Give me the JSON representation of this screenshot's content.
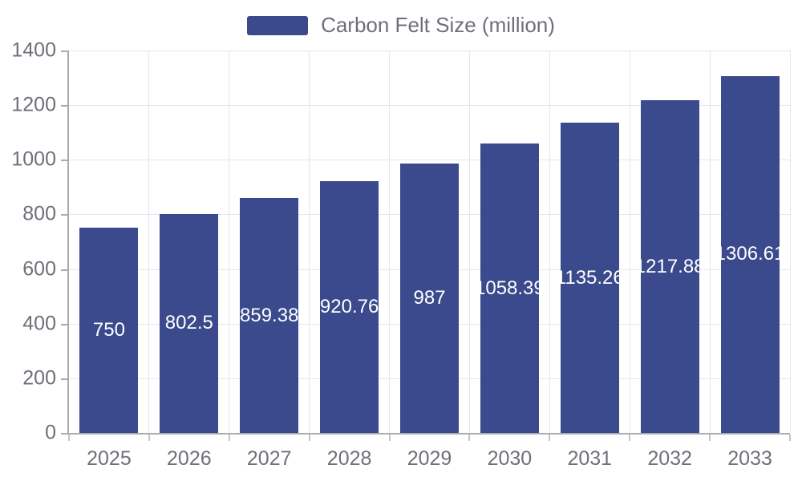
{
  "chart_data": {
    "type": "bar",
    "title": "Carbon Felt Size (million)",
    "legend": [
      "Carbon Felt Size (million)"
    ],
    "legend_position": "top",
    "categories": [
      "2025",
      "2026",
      "2027",
      "2028",
      "2029",
      "2030",
      "2031",
      "2032",
      "2033"
    ],
    "series": [
      {
        "name": "Carbon Felt Size (million)",
        "values": [
          750,
          802.5,
          859.38,
          920.76,
          987,
          1058.39,
          1135.26,
          1217.88,
          1306.61
        ]
      }
    ],
    "value_labels": [
      "750",
      "802.5",
      "859.38",
      "920.76",
      "987",
      "1058.39",
      "1135.26",
      "1217.88",
      "1306.61"
    ],
    "xlabel": "",
    "ylabel": "",
    "ylim": [
      0,
      1400
    ],
    "yticks": [
      0,
      200,
      400,
      600,
      800,
      1000,
      1200,
      1400
    ],
    "grid": true,
    "colors": {
      "bar": "#3A4A8C",
      "value_label": "#FFFFFF",
      "axis_label": "#6E7079",
      "legend_text": "#6E7079",
      "grid_line": "#E3E6EC",
      "axis_line": "#A8ABB2",
      "tick": "#C2C6CC",
      "background": "#FFFFFF"
    }
  }
}
